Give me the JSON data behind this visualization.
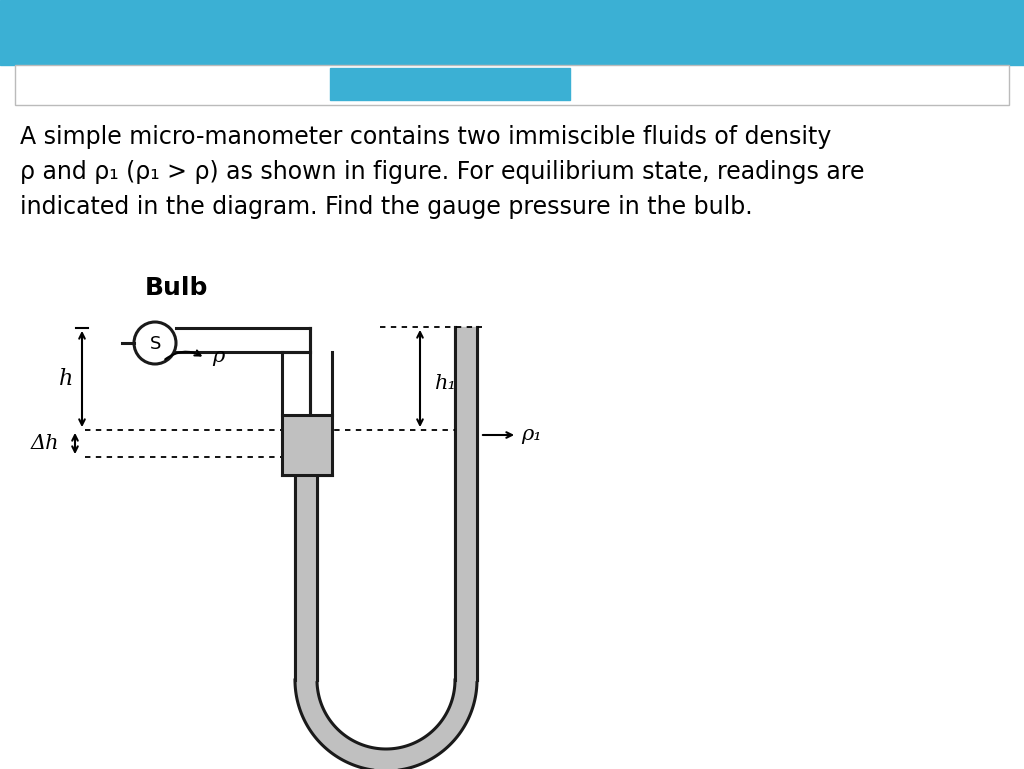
{
  "background_color": "#ffffff",
  "header_color": "#3bb0d4",
  "text_line1": "A simple micro-manometer contains two immiscible fluids of density",
  "text_line2": "ρ and ρ₁ (ρ₁ > ρ) as shown in figure. For equilibrium state, readings are",
  "text_line3": "indicated in the diagram. Find the gauge pressure in the bulb.",
  "bulb_label": "Bulb",
  "label_rho": "ρ",
  "label_rho1": "ρ₁",
  "label_h": "h",
  "label_h1": "h₁",
  "label_dh": "Δh",
  "label_S": "S",
  "pipe_color": "#1a1a1a",
  "gray_fill": "#c0c0c0",
  "fig_width": 10.24,
  "fig_height": 7.69,
  "dpi": 100
}
